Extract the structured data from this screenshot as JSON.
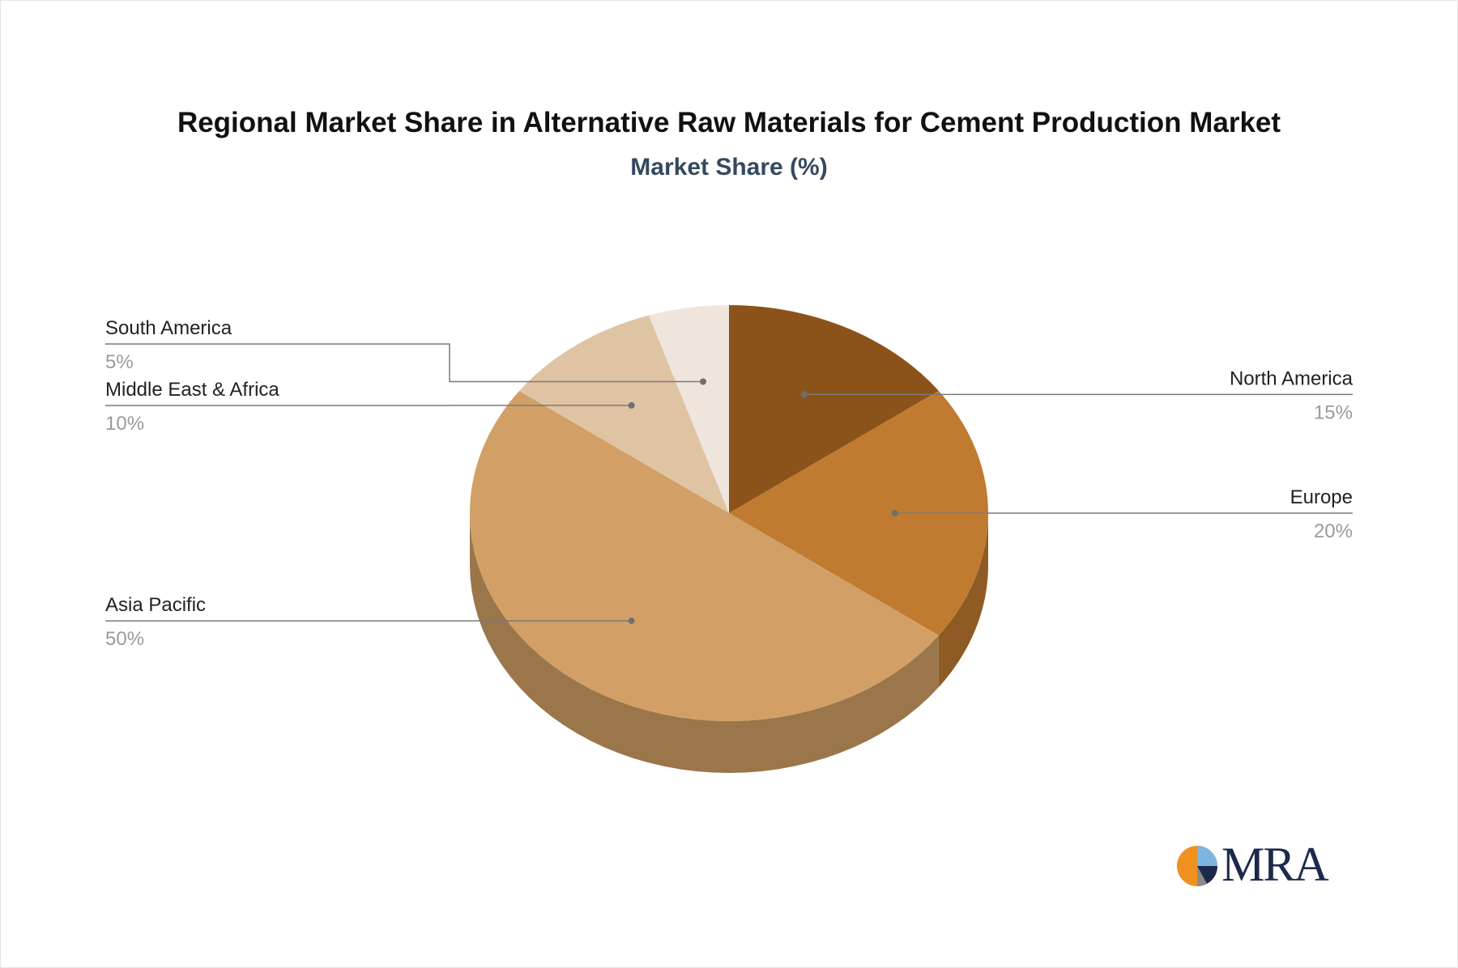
{
  "title": "Regional Market Share in Alternative Raw Materials for Cement Production Market",
  "subtitle": "Market Share (%)",
  "logo_text": "MRA",
  "chart_data": {
    "type": "pie",
    "style": "3d",
    "title": "Regional Market Share in Alternative Raw Materials for Cement Production Market",
    "subtitle": "Market Share (%)",
    "unit": "%",
    "categories": [
      "North America",
      "Europe",
      "Asia Pacific",
      "Middle East & Africa",
      "South America"
    ],
    "values": [
      15,
      20,
      50,
      10,
      5
    ],
    "value_labels": [
      "15%",
      "20%",
      "50%",
      "10%",
      "5%"
    ],
    "colors": [
      "#8b5319",
      "#c07b30",
      "#d2a066",
      "#dfc4a4",
      "#efe5dd"
    ],
    "label_placement": [
      "right",
      "right",
      "left",
      "left",
      "left"
    ]
  }
}
